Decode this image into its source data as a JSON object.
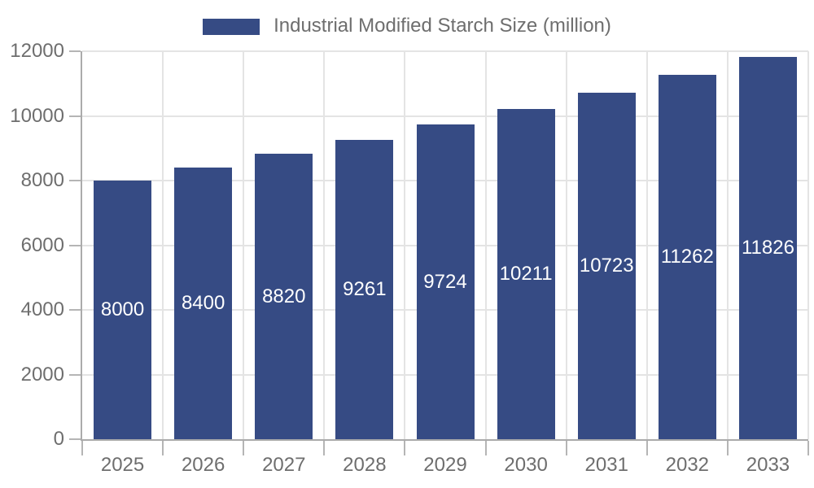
{
  "legend": {
    "label": "Industrial Modified Starch Size (million)",
    "swatch_color": "#364b84"
  },
  "colors": {
    "bar": "#364b84",
    "value_label_text": "#ffffff",
    "axis_text": "#6e6e6e",
    "axis_line": "#ababab",
    "grid_line": "#e4e4e4",
    "background": "#ffffff"
  },
  "chart_data": {
    "type": "bar",
    "title": "Industrial Modified Starch Size (million)",
    "categories": [
      "2025",
      "2026",
      "2027",
      "2028",
      "2029",
      "2030",
      "2031",
      "2032",
      "2033"
    ],
    "values": [
      8000,
      8400,
      8820,
      9261,
      9724,
      10211,
      10723,
      11262,
      11826
    ],
    "xlabel": "",
    "ylabel": "",
    "ylim": [
      0,
      12000
    ],
    "yticks": [
      0,
      2000,
      4000,
      6000,
      8000,
      10000,
      12000
    ],
    "grid": true,
    "legend_position": "top",
    "bar_fraction_of_category": 0.72
  }
}
